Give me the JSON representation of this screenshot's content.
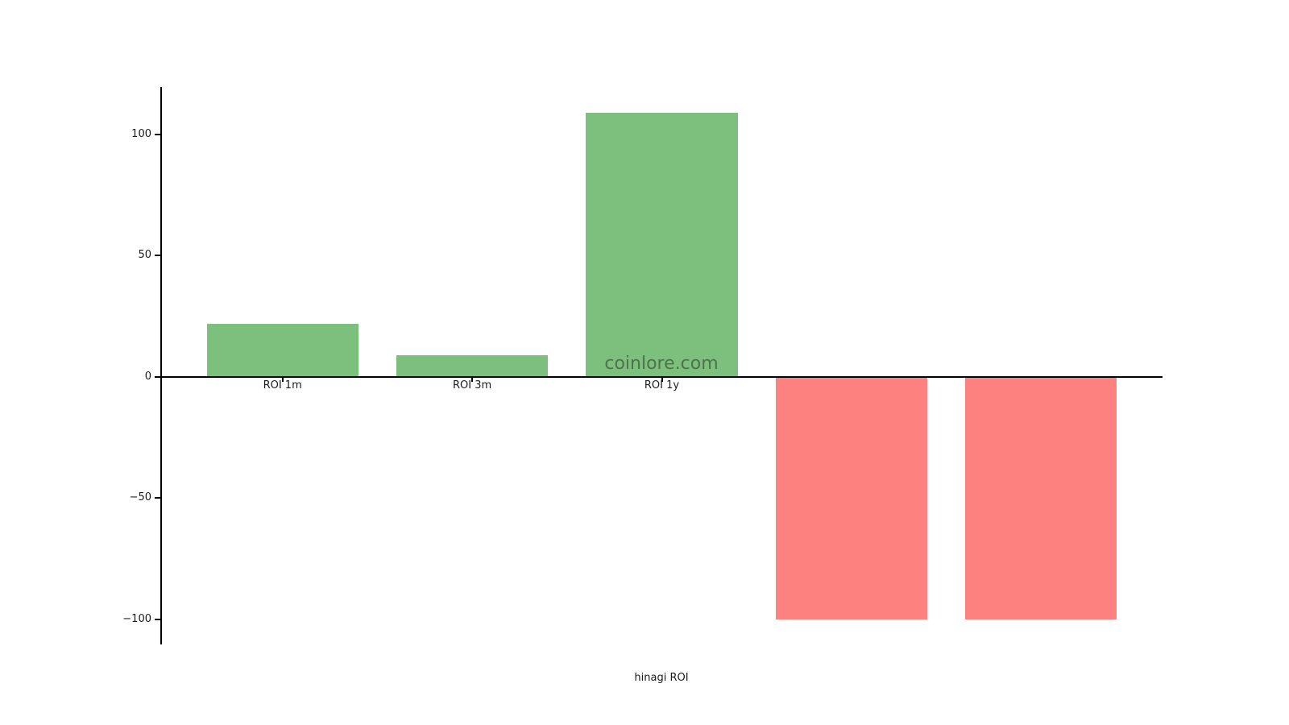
{
  "chart_data": {
    "type": "bar",
    "title": "",
    "xlabel": "hinagi ROI",
    "ylabel": "",
    "categories": [
      "ROI 1m",
      "ROI 3m",
      "ROI 1y",
      "",
      ""
    ],
    "values": [
      22,
      9,
      109,
      -100,
      -100
    ],
    "bar_colors": [
      "#7dc07d",
      "#7dc07d",
      "#7dc07d",
      "#fc817f",
      "#fc817f"
    ],
    "positive_color": "#7dc07d",
    "negative_color": "#fc817f",
    "y_ticks": [
      {
        "value": 100,
        "label": "100"
      },
      {
        "value": 50,
        "label": "50"
      },
      {
        "value": 0,
        "label": "0"
      },
      {
        "value": -50,
        "label": "−50"
      },
      {
        "value": -100,
        "label": "−100"
      }
    ],
    "ylim": [
      -110.3,
      119.6
    ],
    "xlim": [
      -0.64,
      4.64
    ],
    "bar_width_fraction": 0.8,
    "grid": false,
    "legend": null,
    "axis_color": "#000000",
    "tick_text_color": "#1a1a1a"
  },
  "watermark": {
    "text": "coinlore.com",
    "color": "#4c744b"
  }
}
